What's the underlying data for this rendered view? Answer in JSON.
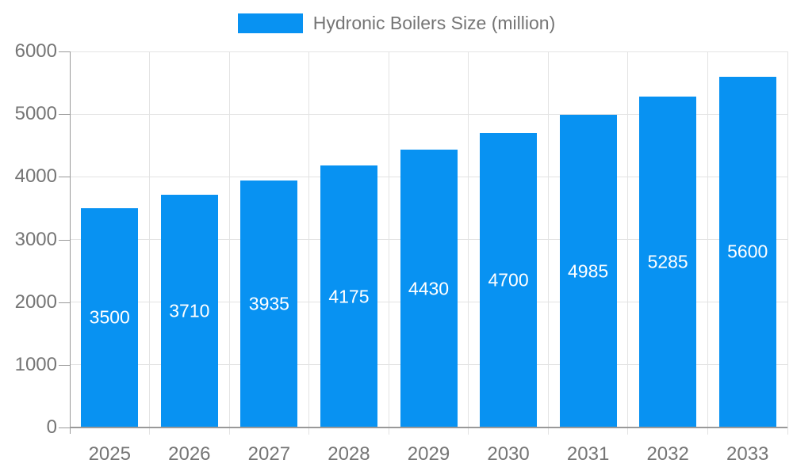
{
  "chart_data": {
    "type": "bar",
    "title": "Hydronic Boilers Size (million)",
    "legend_position": "top",
    "categories": [
      "2025",
      "2026",
      "2027",
      "2028",
      "2029",
      "2030",
      "2031",
      "2032",
      "2033"
    ],
    "series": [
      {
        "name": "Hydronic Boilers Size (million)",
        "values": [
          3500,
          3710,
          3935,
          4175,
          4430,
          4700,
          4985,
          5285,
          5600
        ]
      }
    ],
    "bar_value_labels": [
      "3500",
      "3710",
      "3935",
      "4175",
      "4430",
      "4700",
      "4985",
      "5285",
      "5600"
    ],
    "xlabel": "",
    "ylabel": "",
    "ylim": [
      0,
      6000
    ],
    "y_ticks": [
      0,
      1000,
      2000,
      3000,
      4000,
      5000,
      6000
    ],
    "grid": true,
    "colors": {
      "bar": "#0892f2",
      "bar_value_text": "#ffffff",
      "axis_text": "#757575",
      "gridline": "#e3e3e3",
      "axis_line": "#999999",
      "background": "#ffffff"
    }
  }
}
